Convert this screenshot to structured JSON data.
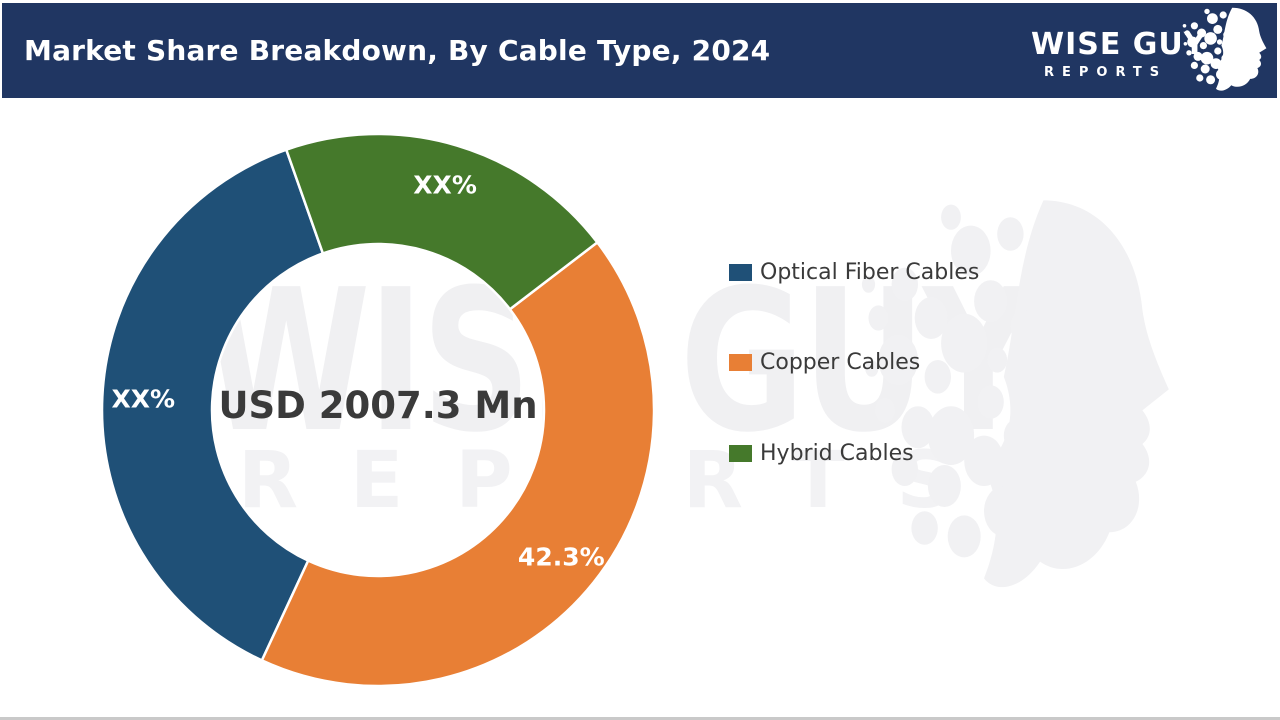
{
  "header": {
    "title": "Market Share Breakdown, By Cable Type, 2024",
    "logo": {
      "name": "WISE GUY",
      "subtitle": "REPORTS"
    }
  },
  "watermark": {
    "line1": "WISE GUY",
    "line2": "REPORTS"
  },
  "chart_data": {
    "type": "pie",
    "subtype": "donut",
    "title": "Market Share Breakdown, By Cable Type, 2024",
    "center_label": "USD 2007.3 Mn",
    "start_angle_deg": 109.4,
    "direction": "counterclockwise",
    "inner_radius_ratio": 0.6,
    "legend_position": "right",
    "segments": [
      {
        "name": "Optical Fiber Cables",
        "label": "XX%",
        "value_pct": 37.7,
        "value_masked": true,
        "color": "#1F5077"
      },
      {
        "name": "Copper Cables",
        "label": "42.3%",
        "value_pct": 42.3,
        "value_masked": false,
        "color": "#E87F35"
      },
      {
        "name": "Hybrid Cables",
        "label": "XX%",
        "value_pct": 20.0,
        "value_masked": true,
        "color": "#45792B"
      }
    ]
  },
  "colors": {
    "header_background": "#203662",
    "header_text": "#ffffff",
    "center_text": "#3a3a3a",
    "legend_text": "#3a3a3a",
    "watermark": "#f0f0f2",
    "bottom_rule": "#c9c9c9"
  }
}
